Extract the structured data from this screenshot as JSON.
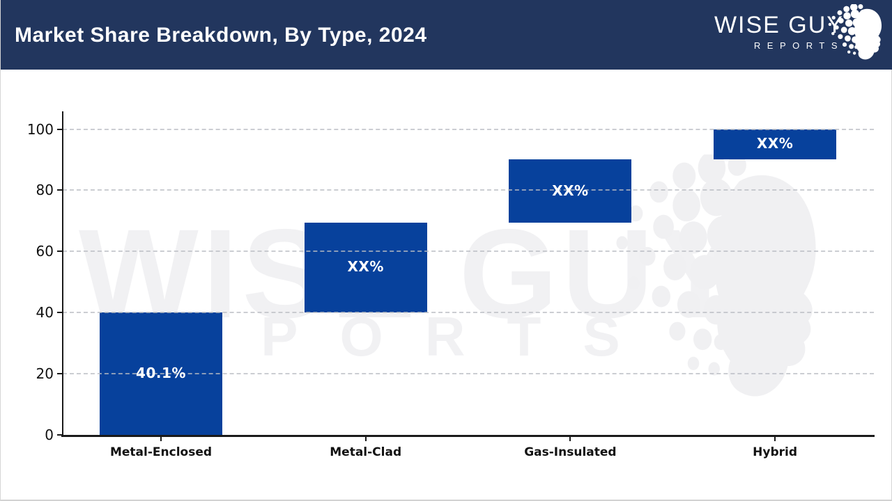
{
  "header": {
    "title": "Market Share Breakdown, By Type, 2024",
    "logo": {
      "line1": "WISE GUY",
      "line2": "REPORTS"
    }
  },
  "watermark": {
    "line1": "WISE GUY",
    "line2": "REPORTS"
  },
  "chart_data": {
    "type": "bar",
    "subtype": "floating-waterfall",
    "title": "Market Share Breakdown, By Type, 2024",
    "categories": [
      "Metal-Enclosed",
      "Metal-Clad",
      "Gas-Insulated",
      "Hybrid"
    ],
    "segments": [
      {
        "category": "Metal-Enclosed",
        "start": 0,
        "end": 40.1,
        "label": "40.1%"
      },
      {
        "category": "Metal-Clad",
        "start": 40.1,
        "end": 69.4,
        "label": "XX%"
      },
      {
        "category": "Gas-Insulated",
        "start": 69.4,
        "end": 90.0,
        "label": "XX%"
      },
      {
        "category": "Hybrid",
        "start": 90.0,
        "end": 100,
        "label": "XX%"
      }
    ],
    "yticks": [
      0,
      20,
      40,
      60,
      80,
      100
    ],
    "ylim": [
      0,
      105
    ],
    "xlabel": "",
    "ylabel": "",
    "legend": "none",
    "grid": "horizontal-dashed",
    "bar_color": "#07419c",
    "grid_color": "#d8d8d8",
    "axis_color": "#1a1a1a",
    "label_color": "#ffffff"
  },
  "colors": {
    "header_bg": "#22365e",
    "header_text": "#ffffff",
    "watermark": "#f1f1f3",
    "page_bg": "#ffffff"
  }
}
